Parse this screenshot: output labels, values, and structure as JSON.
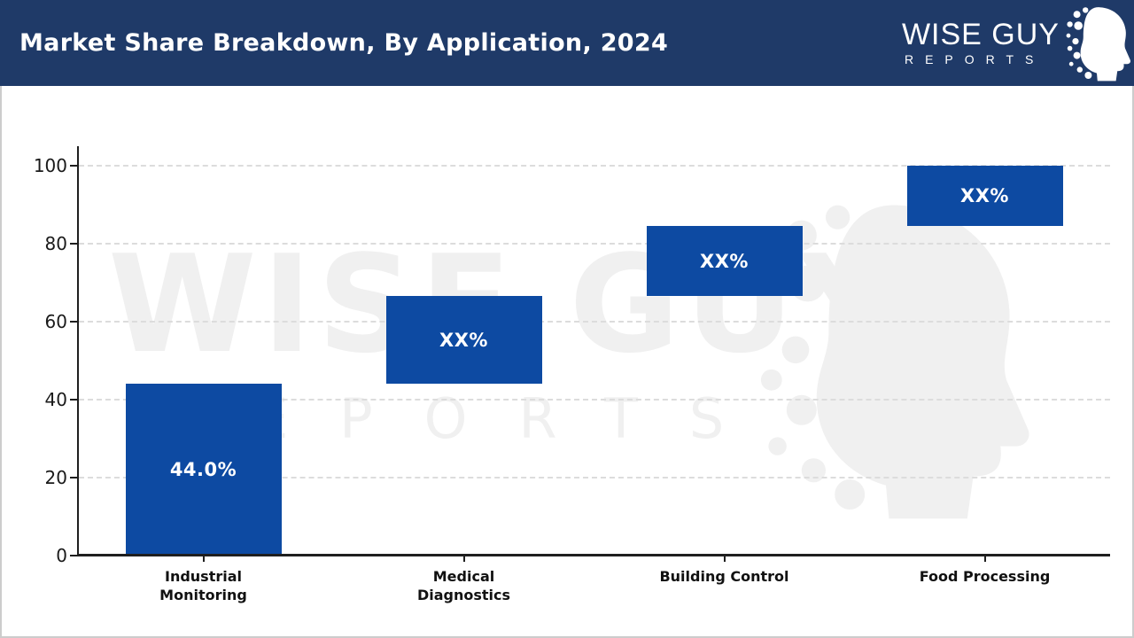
{
  "header": {
    "title": "Market Share Breakdown, By Application, 2024",
    "bg_color": "#1f3a68",
    "logo": {
      "line1": "WISE GUY",
      "line2": "REPORTS"
    }
  },
  "watermark": {
    "line1": "WISE GUY",
    "line2": "REPORTS",
    "color": "#f0f0f0"
  },
  "chart_data": {
    "type": "bar",
    "subtype": "waterfall",
    "title": "Market Share Breakdown, By Application, 2024",
    "categories": [
      "Industrial Monitoring",
      "Medical Diagnostics",
      "Building Control",
      "Food Processing"
    ],
    "category_label_lines": [
      [
        "Industrial",
        "Monitoring"
      ],
      [
        "Medical",
        "Diagnostics"
      ],
      [
        "Building Control"
      ],
      [
        "Food Processing"
      ]
    ],
    "bars": [
      {
        "category": "Industrial Monitoring",
        "start": 0,
        "end": 44,
        "label": "44.0%"
      },
      {
        "category": "Medical Diagnostics",
        "start": 44,
        "end": 66.5,
        "label": "XX%"
      },
      {
        "category": "Building Control",
        "start": 66.5,
        "end": 84.5,
        "label": "XX%"
      },
      {
        "category": "Food Processing",
        "start": 84.5,
        "end": 100,
        "label": "XX%"
      }
    ],
    "y_ticks": [
      0,
      20,
      40,
      60,
      80,
      100
    ],
    "ylim": [
      0,
      105
    ],
    "xlabel": "",
    "ylabel": "",
    "legend": "none",
    "grid": "horizontal-dashed",
    "bar_color": "#0d4aa2",
    "bar_label_color": "#ffffff"
  }
}
